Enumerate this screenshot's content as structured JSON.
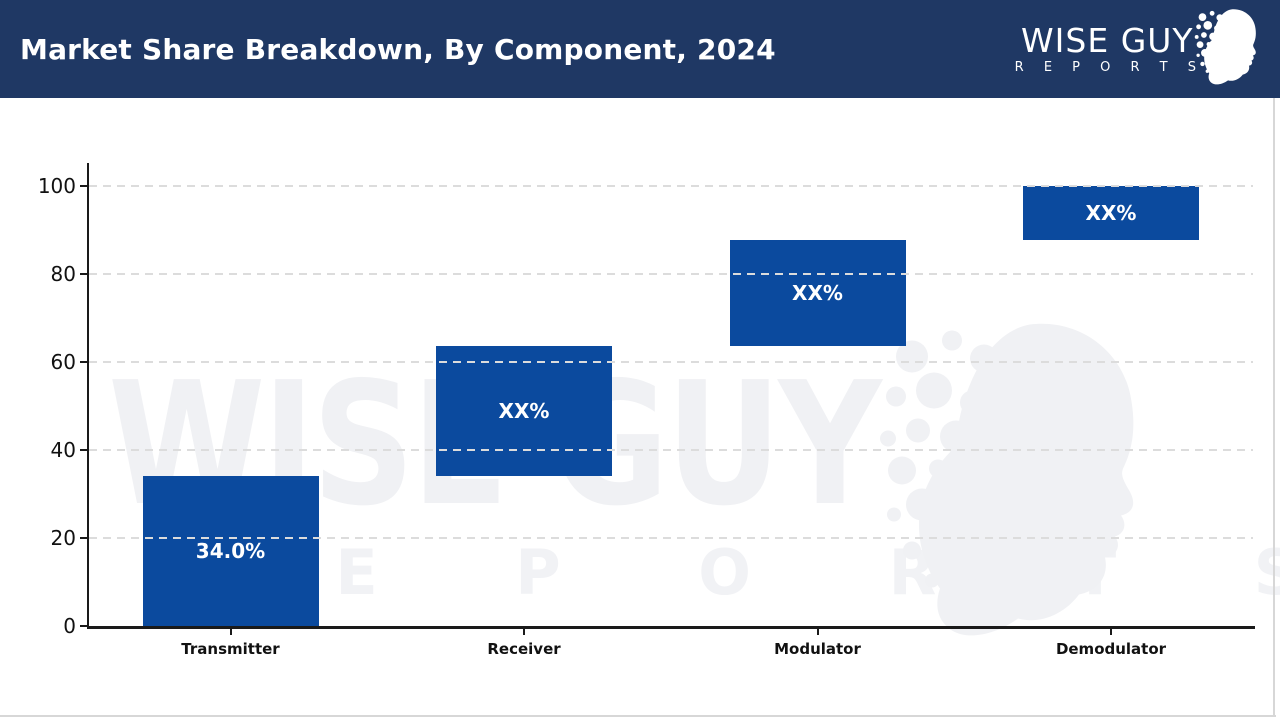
{
  "header": {
    "title": "Market Share Breakdown, By Component, 2024",
    "logo": {
      "line1": "WISE GUY",
      "line2": "R E P O R T S"
    }
  },
  "watermark": {
    "line1": "WISE GUY",
    "line2": "R E P O R T S"
  },
  "colors": {
    "bar": "#0b4a9e",
    "header_background": "#1f3864",
    "gridline": "#dcdcdc",
    "axis": "#1a1a1a",
    "bar_label": "#ffffff",
    "tick_label": "#111111",
    "watermark": "#f0f1f4"
  },
  "chart_data": {
    "type": "bar",
    "subtype": "waterfall",
    "title": "Market Share Breakdown, By Component, 2024",
    "categories": [
      "Transmitter",
      "Receiver",
      "Modulator",
      "Demodulator"
    ],
    "segments": [
      {
        "category": "Transmitter",
        "start": 0,
        "end": 34,
        "label": "34.0%"
      },
      {
        "category": "Receiver",
        "start": 34,
        "end": 63.6,
        "label": "XX%"
      },
      {
        "category": "Modulator",
        "start": 63.6,
        "end": 87.7,
        "label": "XX%"
      },
      {
        "category": "Demodulator",
        "start": 87.7,
        "end": 100,
        "label": "XX%"
      }
    ],
    "yticks": [
      0,
      20,
      40,
      60,
      80,
      100
    ],
    "ylim": [
      0,
      105
    ],
    "xlabel": "",
    "ylabel": "",
    "grid": "horizontal-dashed",
    "legend": "none"
  }
}
